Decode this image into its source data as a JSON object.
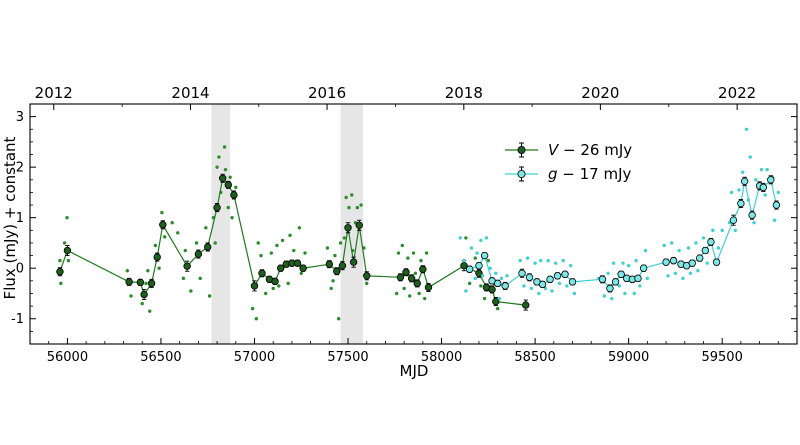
{
  "chart_data": {
    "type": "scatter",
    "title": "",
    "xlabel": "MJD",
    "ylabel": "Flux (mJy) + constant",
    "xlim": [
      55800,
      59900
    ],
    "ylim": [
      -1.5,
      3.25
    ],
    "xticks": [
      56000,
      56500,
      57000,
      57500,
      58000,
      58500,
      59000,
      59500
    ],
    "yticks": [
      -1,
      0,
      1,
      2,
      3
    ],
    "top_axis": {
      "labels": [
        "2012",
        "2014",
        "2016",
        "2018",
        "2020",
        "2022"
      ],
      "mjd": [
        55927,
        56658,
        57388,
        58119,
        58849,
        59580
      ]
    },
    "shaded_regions": [
      [
        56770,
        56870
      ],
      [
        57460,
        57580
      ]
    ],
    "legend": {
      "placement": "top-center",
      "entries": [
        {
          "prefix": "V",
          "suffix": " − 26 mJy"
        },
        {
          "prefix": "g",
          "suffix": " − 17 mJy"
        }
      ]
    },
    "colors": {
      "V": "#1f7a1f",
      "V_marker": "#1e5e1e",
      "V_scatter": "#2e8b2e",
      "g": "#40d0d0",
      "g_marker": "#7fe6e6",
      "shade": "#e6e6e6"
    },
    "series": [
      {
        "name": "V − 26 mJy",
        "binned": [
          [
            55960,
            -0.07,
            0.08
          ],
          [
            56000,
            0.35,
            0.1
          ],
          [
            56330,
            -0.27,
            0.07
          ],
          [
            56390,
            -0.28,
            0.06
          ],
          [
            56410,
            -0.52,
            0.1
          ],
          [
            56450,
            -0.3,
            0.08
          ],
          [
            56480,
            0.22,
            0.08
          ],
          [
            56510,
            0.86,
            0.08
          ],
          [
            56640,
            0.04,
            0.1
          ],
          [
            56700,
            0.28,
            0.08
          ],
          [
            56750,
            0.42,
            0.08
          ],
          [
            56800,
            1.2,
            0.08
          ],
          [
            56830,
            1.78,
            0.08
          ],
          [
            56860,
            1.65,
            0.07
          ],
          [
            56890,
            1.45,
            0.08
          ],
          [
            57000,
            -0.35,
            0.1
          ],
          [
            57040,
            -0.1,
            0.07
          ],
          [
            57080,
            -0.22,
            0.06
          ],
          [
            57110,
            -0.26,
            0.06
          ],
          [
            57140,
            0.0,
            0.06
          ],
          [
            57170,
            0.08,
            0.06
          ],
          [
            57200,
            0.1,
            0.06
          ],
          [
            57230,
            0.1,
            0.06
          ],
          [
            57260,
            0.0,
            0.06
          ],
          [
            57400,
            0.08,
            0.07
          ],
          [
            57440,
            -0.06,
            0.07
          ],
          [
            57470,
            0.05,
            0.08
          ],
          [
            57500,
            0.8,
            0.1
          ],
          [
            57530,
            0.12,
            0.1
          ],
          [
            57560,
            0.85,
            0.1
          ],
          [
            57600,
            -0.15,
            0.08
          ],
          [
            57780,
            -0.18,
            0.07
          ],
          [
            57810,
            -0.08,
            0.07
          ],
          [
            57840,
            -0.2,
            0.07
          ],
          [
            57870,
            -0.3,
            0.07
          ],
          [
            57900,
            -0.02,
            0.07
          ],
          [
            57930,
            -0.38,
            0.08
          ],
          [
            58120,
            0.05,
            0.1
          ],
          [
            58200,
            -0.1,
            0.08
          ],
          [
            58240,
            -0.38,
            0.07
          ],
          [
            58270,
            -0.42,
            0.07
          ],
          [
            58290,
            -0.66,
            0.08
          ],
          [
            58450,
            -0.73,
            0.1
          ]
        ],
        "points": [
          [
            55960,
            0.15
          ],
          [
            55965,
            -0.3
          ],
          [
            55985,
            0.5
          ],
          [
            55998,
            1.0
          ],
          [
            56005,
            0.15
          ],
          [
            56320,
            -0.05
          ],
          [
            56340,
            -0.55
          ],
          [
            56400,
            -0.7
          ],
          [
            56420,
            -0.3
          ],
          [
            56430,
            -0.05
          ],
          [
            56440,
            -0.85
          ],
          [
            56470,
            0.45
          ],
          [
            56490,
            0.0
          ],
          [
            56505,
            1.1
          ],
          [
            56520,
            0.62
          ],
          [
            56560,
            0.9
          ],
          [
            56590,
            0.7
          ],
          [
            56620,
            -0.2
          ],
          [
            56630,
            0.35
          ],
          [
            56660,
            -0.45
          ],
          [
            56690,
            0.5
          ],
          [
            56710,
            -0.2
          ],
          [
            56740,
            0.8
          ],
          [
            56760,
            -0.55
          ],
          [
            56780,
            1.0
          ],
          [
            56790,
            0.5
          ],
          [
            56800,
            2.0
          ],
          [
            56810,
            2.2
          ],
          [
            56820,
            1.5
          ],
          [
            56840,
            2.4
          ],
          [
            56845,
            1.95
          ],
          [
            56860,
            1.2
          ],
          [
            56870,
            1.8
          ],
          [
            56880,
            1.0
          ],
          [
            56900,
            1.6
          ],
          [
            56990,
            -0.8
          ],
          [
            57010,
            -1.0
          ],
          [
            57020,
            0.5
          ],
          [
            57035,
            0.25
          ],
          [
            57060,
            -0.5
          ],
          [
            57090,
            0.3
          ],
          [
            57100,
            -0.4
          ],
          [
            57120,
            0.45
          ],
          [
            57130,
            -0.35
          ],
          [
            57150,
            0.55
          ],
          [
            57180,
            -0.3
          ],
          [
            57190,
            0.65
          ],
          [
            57210,
            0.35
          ],
          [
            57240,
            0.8
          ],
          [
            57250,
            -0.1
          ],
          [
            57270,
            0.3
          ],
          [
            57390,
            0.4
          ],
          [
            57410,
            -0.4
          ],
          [
            57420,
            -0.25
          ],
          [
            57430,
            0.25
          ],
          [
            57450,
            -1.0
          ],
          [
            57460,
            0.5
          ],
          [
            57480,
            0.6
          ],
          [
            57490,
            1.4
          ],
          [
            57505,
            1.2
          ],
          [
            57520,
            1.45
          ],
          [
            57525,
            0.35
          ],
          [
            57540,
            0.9
          ],
          [
            57550,
            1.2
          ],
          [
            57570,
            1.25
          ],
          [
            57585,
            0.4
          ],
          [
            57600,
            -0.3
          ],
          [
            57760,
            -0.5
          ],
          [
            57770,
            0.3
          ],
          [
            57790,
            0.45
          ],
          [
            57800,
            -0.4
          ],
          [
            57820,
            0.2
          ],
          [
            57830,
            -0.55
          ],
          [
            57850,
            0.3
          ],
          [
            57860,
            -0.1
          ],
          [
            57880,
            -0.5
          ],
          [
            57890,
            0.15
          ],
          [
            57910,
            -0.6
          ],
          [
            57920,
            0.3
          ],
          [
            58130,
            0.6
          ],
          [
            58150,
            -0.3
          ],
          [
            58180,
            0.2
          ],
          [
            58210,
            -0.35
          ],
          [
            58230,
            -0.6
          ],
          [
            58250,
            0.15
          ],
          [
            58280,
            -0.3
          ],
          [
            58300,
            -0.8
          ]
        ]
      },
      {
        "name": "g − 17 mJy",
        "binned": [
          [
            58150,
            -0.02,
            0.06
          ],
          [
            58200,
            0.05,
            0.06
          ],
          [
            58230,
            0.25,
            0.06
          ],
          [
            58270,
            -0.25,
            0.06
          ],
          [
            58300,
            -0.3,
            0.06
          ],
          [
            58340,
            -0.35,
            0.07
          ],
          [
            58430,
            -0.1,
            0.08
          ],
          [
            58470,
            -0.18,
            0.07
          ],
          [
            58510,
            -0.27,
            0.06
          ],
          [
            58540,
            -0.32,
            0.06
          ],
          [
            58580,
            -0.22,
            0.06
          ],
          [
            58620,
            -0.15,
            0.06
          ],
          [
            58660,
            -0.12,
            0.06
          ],
          [
            58700,
            -0.27,
            0.06
          ],
          [
            58860,
            -0.22,
            0.07
          ],
          [
            58900,
            -0.4,
            0.07
          ],
          [
            58930,
            -0.27,
            0.06
          ],
          [
            58960,
            -0.12,
            0.06
          ],
          [
            58990,
            -0.2,
            0.06
          ],
          [
            59020,
            -0.22,
            0.06
          ],
          [
            59050,
            -0.2,
            0.06
          ],
          [
            59080,
            0.0,
            0.06
          ],
          [
            59200,
            0.12,
            0.06
          ],
          [
            59240,
            0.15,
            0.06
          ],
          [
            59280,
            0.08,
            0.06
          ],
          [
            59310,
            0.05,
            0.06
          ],
          [
            59340,
            0.1,
            0.06
          ],
          [
            59380,
            0.2,
            0.06
          ],
          [
            59410,
            0.35,
            0.06
          ],
          [
            59440,
            0.52,
            0.07
          ],
          [
            59470,
            0.12,
            0.06
          ],
          [
            59560,
            0.95,
            0.1
          ],
          [
            59600,
            1.28,
            0.08
          ],
          [
            59620,
            1.72,
            0.08
          ],
          [
            59660,
            1.05,
            0.08
          ],
          [
            59700,
            1.63,
            0.08
          ],
          [
            59720,
            1.6,
            0.08
          ],
          [
            59760,
            1.75,
            0.08
          ],
          [
            59790,
            1.25,
            0.08
          ]
        ],
        "points": [
          [
            58100,
            0.6
          ],
          [
            58120,
            0.15
          ],
          [
            58130,
            -0.45
          ],
          [
            58160,
            0.4
          ],
          [
            58180,
            -0.2
          ],
          [
            58190,
            0.3
          ],
          [
            58210,
            0.55
          ],
          [
            58220,
            -0.15
          ],
          [
            58240,
            0.6
          ],
          [
            58260,
            0.0
          ],
          [
            58290,
            -0.1
          ],
          [
            58310,
            -0.6
          ],
          [
            58320,
            -0.2
          ],
          [
            58350,
            -0.15
          ],
          [
            58420,
            0.15
          ],
          [
            58440,
            -0.35
          ],
          [
            58460,
            0.2
          ],
          [
            58480,
            -0.4
          ],
          [
            58500,
            0.1
          ],
          [
            58520,
            -0.5
          ],
          [
            58530,
            0.15
          ],
          [
            58555,
            -0.4
          ],
          [
            58570,
            0.15
          ],
          [
            58590,
            -0.45
          ],
          [
            58610,
            0.1
          ],
          [
            58630,
            -0.3
          ],
          [
            58650,
            0.15
          ],
          [
            58670,
            -0.35
          ],
          [
            58690,
            0.05
          ],
          [
            58710,
            -0.5
          ],
          [
            58840,
            -0.2
          ],
          [
            58870,
            -0.55
          ],
          [
            58890,
            -0.1
          ],
          [
            58910,
            -0.6
          ],
          [
            58920,
            0.1
          ],
          [
            58950,
            -0.35
          ],
          [
            58970,
            0.1
          ],
          [
            58980,
            -0.5
          ],
          [
            59000,
            0.05
          ],
          [
            59030,
            -0.5
          ],
          [
            59040,
            0.15
          ],
          [
            59060,
            -0.35
          ],
          [
            59090,
            0.35
          ],
          [
            59100,
            -0.2
          ],
          [
            59190,
            0.45
          ],
          [
            59210,
            -0.15
          ],
          [
            59230,
            0.5
          ],
          [
            59250,
            -0.1
          ],
          [
            59270,
            0.35
          ],
          [
            59290,
            -0.2
          ],
          [
            59320,
            0.4
          ],
          [
            59330,
            -0.1
          ],
          [
            59360,
            0.5
          ],
          [
            59370,
            -0.05
          ],
          [
            59400,
            0.6
          ],
          [
            59420,
            0.1
          ],
          [
            59450,
            0.75
          ],
          [
            59480,
            0.4
          ],
          [
            59500,
            0.75
          ],
          [
            59540,
            0.9
          ],
          [
            59550,
            1.5
          ],
          [
            59570,
            0.75
          ],
          [
            59590,
            1.55
          ],
          [
            59610,
            1.9
          ],
          [
            59630,
            2.75
          ],
          [
            59640,
            1.35
          ],
          [
            59650,
            2.2
          ],
          [
            59670,
            0.9
          ],
          [
            59680,
            1.75
          ],
          [
            59710,
            1.95
          ],
          [
            59730,
            1.45
          ],
          [
            59740,
            1.95
          ],
          [
            59770,
            1.8
          ],
          [
            59780,
            0.95
          ],
          [
            59800,
            1.5
          ]
        ]
      }
    ]
  }
}
